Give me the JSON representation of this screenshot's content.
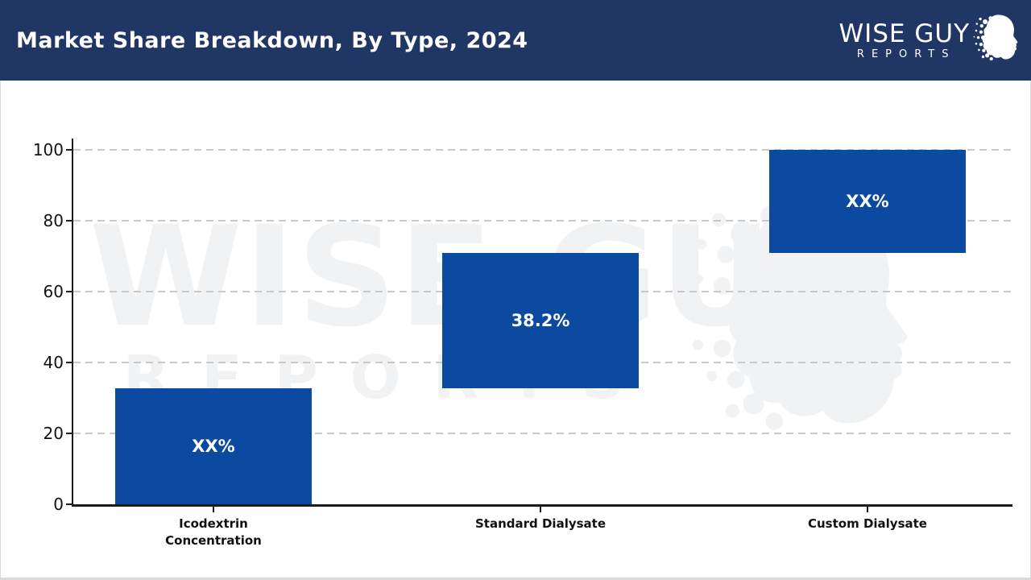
{
  "header": {
    "title": "Market Share Breakdown, By Type, 2024",
    "bg_color": "#203766",
    "logo": {
      "line1": "WISE GUY",
      "line2": "REPORTS"
    }
  },
  "watermark": {
    "line1": "WISE GUY",
    "line2": "REPORTS"
  },
  "chart_data": {
    "type": "bar",
    "subtype": "floating-waterfall",
    "title": "Market Share Breakdown, By Type, 2024",
    "categories": [
      "Icodextrin Concentration",
      "Standard Dialysate",
      "Custom Dialysate"
    ],
    "series": [
      {
        "name": "Market share (%)",
        "bars": [
          {
            "category": "Icodextrin Concentration",
            "start": 0,
            "end": 32.8,
            "label": "XX%"
          },
          {
            "category": "Standard Dialysate",
            "start": 32.8,
            "end": 71.0,
            "label": "38.2%"
          },
          {
            "category": "Custom Dialysate",
            "start": 71.0,
            "end": 100,
            "label": "XX%"
          }
        ]
      }
    ],
    "xlabel": "",
    "ylabel": "",
    "ylim": [
      0,
      100
    ],
    "yticks": [
      0,
      20,
      40,
      60,
      80,
      100
    ],
    "grid": "horizontal-dashed",
    "legend": "none",
    "colors": {
      "bar": "#0c49a1",
      "bar_label": "#ffffff",
      "axis": "#1c1c1c",
      "gridline": "#c9c9c9",
      "tick_label": "#111111",
      "watermark": "#f1f2f4"
    }
  }
}
